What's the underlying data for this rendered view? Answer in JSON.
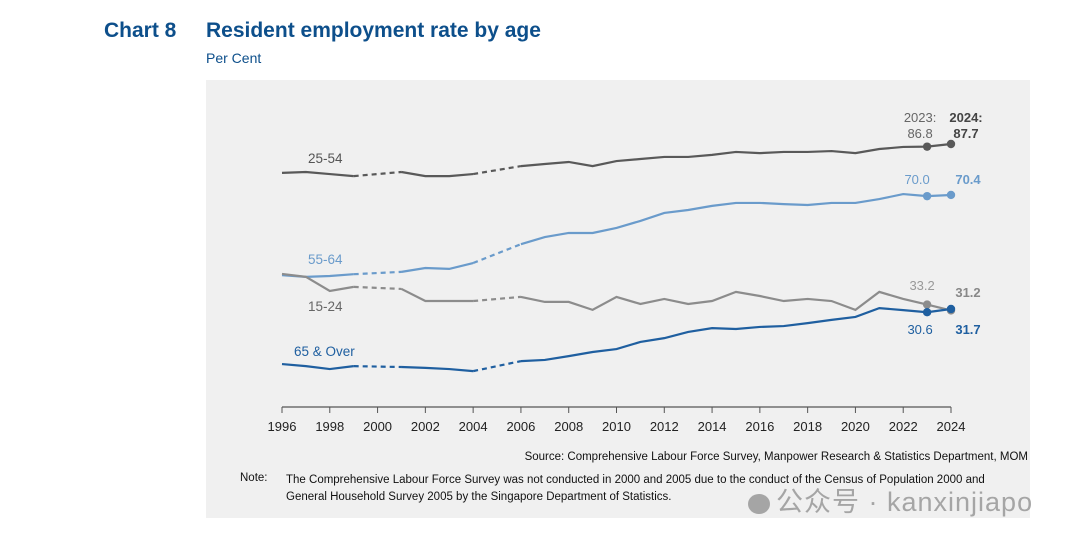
{
  "header": {
    "chart_number": "Chart 8",
    "title": "Resident employment rate by age",
    "unit": "Per Cent"
  },
  "footer": {
    "source": "Source: Comprehensive Labour Force Survey, Manpower Research & Statistics Department, MOM",
    "note_label": "Note:",
    "note_text": "The Comprehensive Labour Force Survey was not conducted in 2000 and 2005 due to the conduct of the Census of Population 2000 and General Household Survey 2005 by the Singapore Department of Statistics."
  },
  "watermark": {
    "text": "公众号 · kanxinjiapo"
  },
  "chart_data": {
    "type": "line",
    "title": "Resident employment rate by age",
    "xlabel": "",
    "ylabel": "Per Cent",
    "x": [
      1996,
      1997,
      1998,
      1999,
      2001,
      2002,
      2003,
      2004,
      2006,
      2007,
      2008,
      2009,
      2010,
      2011,
      2012,
      2013,
      2014,
      2015,
      2016,
      2017,
      2018,
      2019,
      2020,
      2021,
      2022,
      2023,
      2024
    ],
    "missing_years": [
      2000,
      2005
    ],
    "x_ticks": [
      "1996",
      "1998",
      "2000",
      "2002",
      "2004",
      "2006",
      "2008",
      "2010",
      "2012",
      "2014",
      "2016",
      "2018",
      "2020",
      "2022",
      "2024"
    ],
    "ylim": [
      5,
      95
    ],
    "grid": false,
    "series": [
      {
        "name": "25-54",
        "color": "#595959",
        "values": [
          77.9,
          78.2,
          77.5,
          76.8,
          78.2,
          76.8,
          76.8,
          77.5,
          80.2,
          80.9,
          81.6,
          80.2,
          81.9,
          82.6,
          83.3,
          83.3,
          84.0,
          85.0,
          84.6,
          85.0,
          85.0,
          85.3,
          84.6,
          86.0,
          86.7,
          86.8,
          87.7
        ],
        "label_2023": "2023:\n86.8",
        "label_2024": "2024:\n87.7"
      },
      {
        "name": "55-64",
        "color": "#6a9bcb",
        "values": [
          43.2,
          42.6,
          42.9,
          43.5,
          44.3,
          45.6,
          45.3,
          47.3,
          53.7,
          56.1,
          57.5,
          57.5,
          59.2,
          61.6,
          64.3,
          65.3,
          66.7,
          67.7,
          67.7,
          67.3,
          67.0,
          67.7,
          67.7,
          69.0,
          70.7,
          70.0,
          70.4
        ],
        "label_2023": "70.0",
        "label_2024": "70.4"
      },
      {
        "name": "15-24",
        "color": "#8c8c8c",
        "values": [
          43.6,
          42.6,
          37.8,
          39.2,
          38.5,
          34.4,
          34.4,
          34.4,
          35.8,
          34.1,
          34.1,
          31.4,
          35.8,
          33.4,
          35.1,
          33.4,
          34.4,
          37.5,
          36.1,
          34.4,
          35.1,
          34.4,
          31.4,
          37.5,
          35.1,
          33.2,
          31.2
        ],
        "label_2023": "33.2",
        "label_2024": "31.2"
      },
      {
        "name": "65 & Over",
        "color": "#1f5fa0",
        "values": [
          13.0,
          12.3,
          11.3,
          12.3,
          12.0,
          11.7,
          11.3,
          10.6,
          14.0,
          14.4,
          15.7,
          17.1,
          18.1,
          20.5,
          21.8,
          23.9,
          25.2,
          24.9,
          25.6,
          25.9,
          26.9,
          28.0,
          29.0,
          32.0,
          31.3,
          30.6,
          31.7
        ],
        "label_2023": "30.6",
        "label_2024": "31.7"
      }
    ]
  }
}
